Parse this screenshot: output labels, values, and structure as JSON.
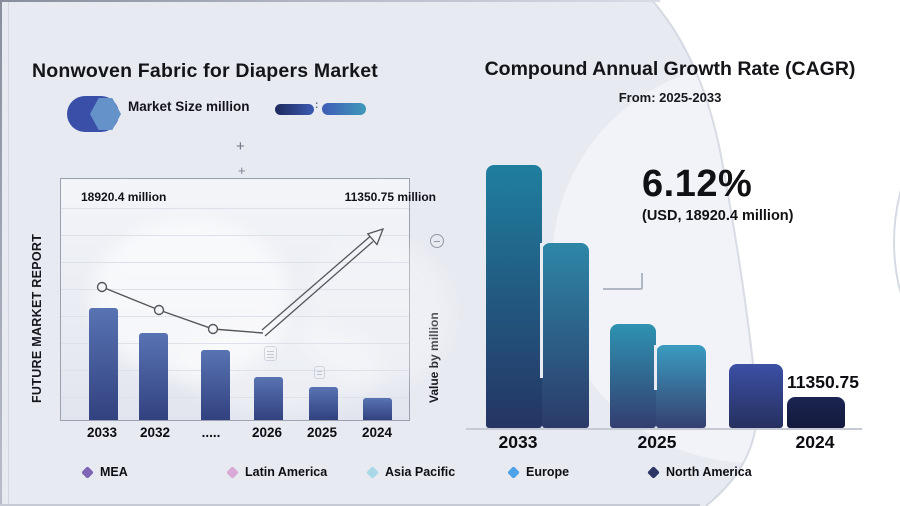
{
  "page": {
    "left_section": {
      "title": "Nonwoven Fabric for Diapers Market",
      "market_size_label": "Market Size million",
      "pill_separator": ":",
      "watermark": "FUTURE MARKET REPORT",
      "plus_top": "+",
      "plus_bottom": "+",
      "start_value_label": "18920.4 million",
      "end_value_label": "11350.75 million",
      "value_axis_label": "Value by million"
    },
    "right_section": {
      "title": "Compound Annual Growth Rate (CAGR)",
      "subtitle": "From: 2025-2033",
      "cagr_value": "6.12%",
      "cagr_base": "(USD, 18920.4 million)",
      "end_value_label": "11350.75"
    },
    "legend": [
      {
        "label": "MEA",
        "color": "#7e66b5"
      },
      {
        "label": "Latin America",
        "color": "#d9aad7"
      },
      {
        "label": "Asia Pacific",
        "color": "#a9d9e9"
      },
      {
        "label": "Europe",
        "color": "#4da3e8"
      },
      {
        "label": "North America",
        "color": "#2b3666"
      }
    ],
    "icons": {
      "market_size_icon": "capsule-with-hexagon",
      "minus_circle_icon": "circle-minus",
      "plus_icon": "+",
      "doc_icon": "document",
      "trend_arrow_icon": "up-right-outlined-arrow"
    },
    "colors": {
      "background": "#e8eaf1",
      "left_bar_top": "#5873b3",
      "left_bar_bottom": "#32417f",
      "right_bar_teal": "#1f7f9f",
      "right_bar_navy": "#131a3c"
    }
  },
  "chart_data": [
    {
      "id": "market-size-trend",
      "type": "bar",
      "title": "Nonwoven Fabric for Diapers Market — Market Size million",
      "categories": [
        "2033",
        "2032",
        ".....",
        "2026",
        "2025",
        "2024"
      ],
      "values": [
        18920.4,
        16820,
        15390,
        13120,
        12280,
        11350.75
      ],
      "values_note": "Only 2033 (18920.4 million) and 2024 (11350.75 million) are labeled on the chart; intermediate values estimated from bar heights",
      "xlabel": "",
      "ylabel": "Value by million",
      "grid": true,
      "legend_position": "none",
      "annotations": [
        "18920.4 million (top-left)",
        "11350.75 million (top-right)",
        "marker line declining from 2033 to 2026 then large outlined arrow rising up-right"
      ]
    },
    {
      "id": "cagr-chart",
      "type": "bar",
      "title": "Compound Annual Growth Rate (CAGR)",
      "subtitle": "From: 2025-2033",
      "categories": [
        "2033",
        "2025",
        "2024"
      ],
      "series": [
        {
          "name": "primary",
          "values": [
            18920.4,
            13730,
            12430
          ]
        },
        {
          "name": "secondary",
          "values": [
            16380,
            13050,
            11350.75
          ]
        }
      ],
      "values_note": "Only 18920.4 million (2033 base, shown in CAGR note) and 11350.75 (2024) are labeled; other values estimated from bar heights",
      "grid": false,
      "legend_position": "none",
      "annotations": [
        "6.12%",
        "(USD, 18920.4 million)",
        "11350.75"
      ]
    }
  ]
}
